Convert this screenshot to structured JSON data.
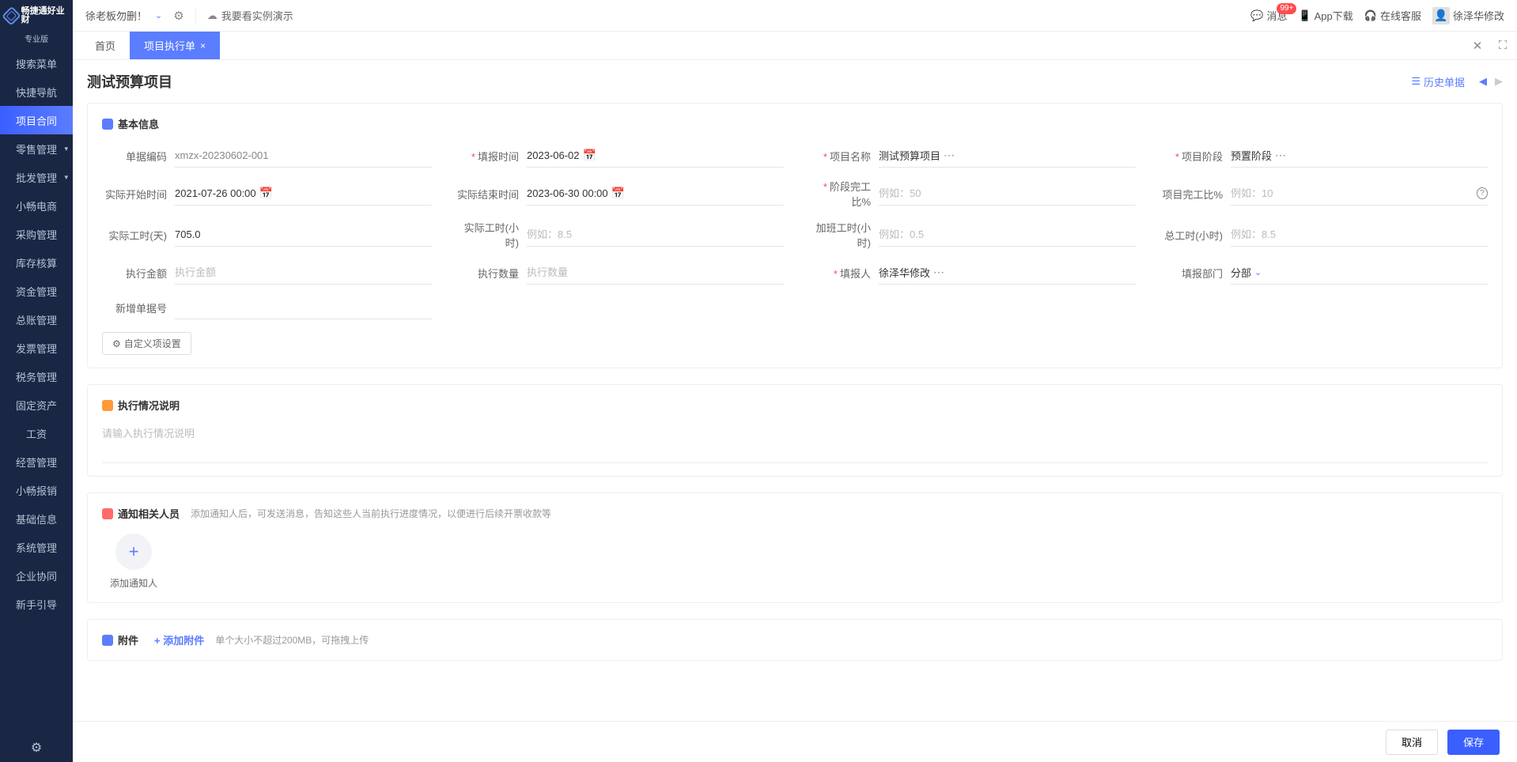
{
  "brand": {
    "name": "畅捷通好业财",
    "edition": "专业版"
  },
  "sidebar": {
    "items": [
      {
        "label": "搜索菜单",
        "caret": false
      },
      {
        "label": "快捷导航",
        "caret": false
      },
      {
        "label": "项目合同",
        "caret": false,
        "active": true
      },
      {
        "label": "零售管理",
        "caret": true
      },
      {
        "label": "批发管理",
        "caret": true
      },
      {
        "label": "小畅电商",
        "caret": false
      },
      {
        "label": "采购管理",
        "caret": false
      },
      {
        "label": "库存核算",
        "caret": false
      },
      {
        "label": "资金管理",
        "caret": false
      },
      {
        "label": "总账管理",
        "caret": false
      },
      {
        "label": "发票管理",
        "caret": false
      },
      {
        "label": "税务管理",
        "caret": false
      },
      {
        "label": "固定资产",
        "caret": false
      },
      {
        "label": "工资",
        "caret": false
      },
      {
        "label": "经营管理",
        "caret": false
      },
      {
        "label": "小畅报销",
        "caret": false
      },
      {
        "label": "基础信息",
        "caret": false
      },
      {
        "label": "系统管理",
        "caret": false
      },
      {
        "label": "企业协同",
        "caret": false
      },
      {
        "label": "新手引导",
        "caret": false
      }
    ]
  },
  "topbar": {
    "org": "徐老板勿删！",
    "demo": "我要看实例演示",
    "msg": "消息",
    "msg_badge": "99+",
    "app": "App下载",
    "support": "在线客服",
    "user": "徐泽华修改"
  },
  "tabs": [
    {
      "label": "首页",
      "closable": false
    },
    {
      "label": "项目执行单",
      "closable": true,
      "active": true
    }
  ],
  "page": {
    "title": "测试预算项目",
    "history": "历史单据"
  },
  "sections": {
    "basic": "基本信息",
    "desc": "执行情况说明",
    "desc_placeholder": "请输入执行情况说明",
    "notify": "通知相关人员",
    "notify_hint": "添加通知人后，可发送消息，告知这些人当前执行进度情况，以便进行后续开票收款等",
    "add_person": "添加通知人",
    "attach": "附件",
    "attach_add": "+ 添加附件",
    "attach_hint": "单个大小不超过200MB，可拖拽上传",
    "custom": "自定义项设置"
  },
  "form": {
    "code_label": "单据编码",
    "code": "xmzx-20230602-001",
    "report_time_label": "填报时间",
    "report_time": "2023-06-02",
    "project_name_label": "项目名称",
    "project_name": "测试预算项目",
    "project_stage_label": "项目阶段",
    "project_stage": "预置阶段",
    "start_label": "实际开始时间",
    "start": "2021-07-26 00:00",
    "end_label": "实际结束时间",
    "end": "2023-06-30 00:00",
    "stage_pct_label": "阶段完工比%",
    "stage_pct_ph": "例如：50",
    "proj_pct_label": "项目完工比%",
    "proj_pct_ph": "例如：10",
    "days_label": "实际工时(天)",
    "days": "705.0",
    "hours_label": "实际工时(小时)",
    "hours_ph": "例如：8.5",
    "ot_label": "加班工时(小时)",
    "ot_ph": "例如：0.5",
    "total_label": "总工时(小时)",
    "total_ph": "例如：8.5",
    "amount_label": "执行金额",
    "amount_ph": "执行金额",
    "qty_label": "执行数量",
    "qty_ph": "执行数量",
    "reporter_label": "填报人",
    "reporter": "徐泽华修改",
    "dept_label": "填报部门",
    "dept": "分部",
    "newcode_label": "新增单据号"
  },
  "footer": {
    "cancel": "取消",
    "save": "保存"
  }
}
